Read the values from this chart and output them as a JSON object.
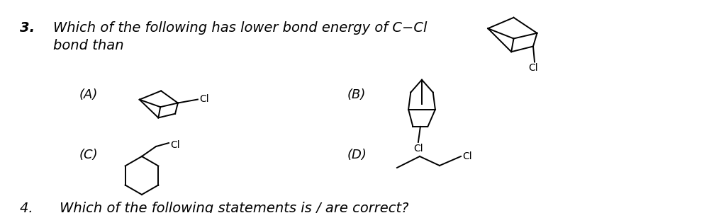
{
  "background_color": "#ffffff",
  "question_number": "3.",
  "question_text_line1": "Which of the following has lower bond energy of C−Cl",
  "question_text_line2": "bond than",
  "option_A_label": "(A)",
  "option_B_label": "(B)",
  "option_C_label": "(C)",
  "option_D_label": "(D)",
  "question4_text": "4.      Which of the following statements is / are correct?",
  "font_size_main": 14,
  "font_size_label": 13,
  "font_size_cl": 10,
  "text_color": "#000000",
  "lw": 1.4
}
